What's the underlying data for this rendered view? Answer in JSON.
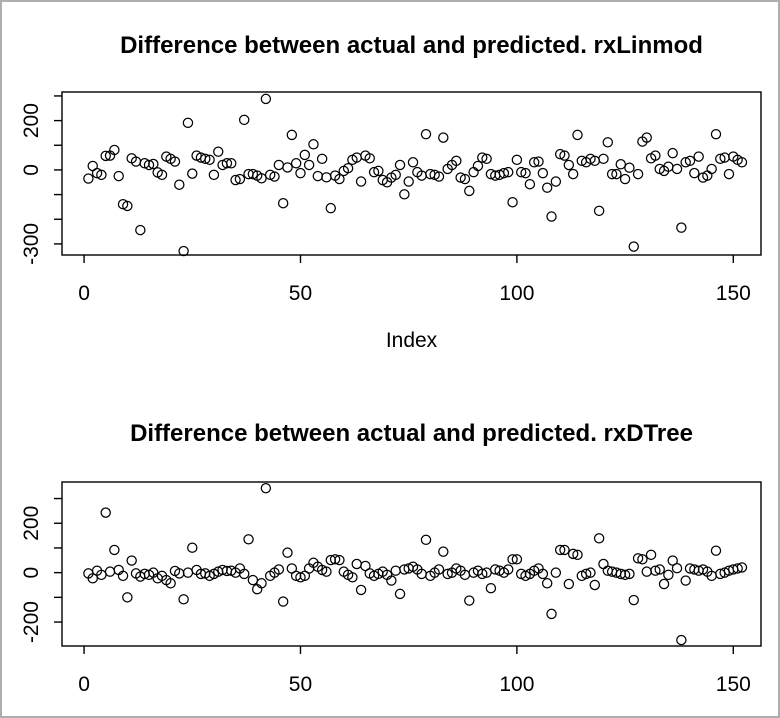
{
  "window": {
    "background": "#ffffff",
    "border_color": "#aeaeae",
    "plot_color": "#000000",
    "marker": "open-circle"
  },
  "chart_data": [
    {
      "type": "scatter",
      "title": "Difference between actual and predicted. rxLinmod",
      "xlabel": "Index",
      "ylabel": "",
      "legend": "none",
      "grid": false,
      "marker": "open-circle",
      "x_start": 1,
      "x_step": 1,
      "n_points": 152,
      "xlim": [
        -5.1,
        156.4
      ],
      "ylim": [
        -345,
        316
      ],
      "xticks": {
        "values": [
          0,
          50,
          100,
          150
        ],
        "labels": [
          "0",
          "50",
          "100",
          "150"
        ]
      },
      "yticks": {
        "values": [
          300,
          200,
          100,
          0,
          -100,
          -200,
          -300
        ],
        "labels": [
          "",
          "200",
          "",
          "0",
          "",
          "",
          "-300"
        ]
      },
      "values": [
        -35,
        16,
        -13,
        -20,
        57,
        58,
        81,
        -25,
        -139,
        -146,
        47,
        34,
        -244,
        27,
        20,
        24,
        -10,
        -20,
        54,
        45,
        34,
        -60,
        -329,
        191,
        -15,
        58,
        50,
        45,
        41,
        -20,
        74,
        20,
        27,
        27,
        -41,
        -37,
        203,
        -17,
        -17,
        -23,
        -34,
        288,
        -20,
        -27,
        20,
        -135,
        10,
        142,
        27,
        -13,
        61,
        20,
        104,
        -25,
        45,
        -30,
        -155,
        -23,
        -37,
        -4,
        7,
        41,
        50,
        -47,
        58,
        47,
        -9,
        -4,
        -41,
        -50,
        -31,
        -20,
        20,
        -99,
        -47,
        31,
        -9,
        -23,
        145,
        -17,
        -20,
        -27,
        131,
        4,
        20,
        37,
        -31,
        -37,
        -85,
        -9,
        16,
        50,
        45,
        -17,
        -23,
        -20,
        -13,
        -9,
        -131,
        41,
        -9,
        -13,
        -58,
        31,
        34,
        -13,
        -72,
        -189,
        -47,
        64,
        58,
        20,
        -17,
        142,
        37,
        31,
        45,
        37,
        -166,
        45,
        112,
        -17,
        -17,
        23,
        -37,
        9,
        -311,
        -17,
        115,
        131,
        47,
        58,
        4,
        -4,
        13,
        68,
        4,
        -234,
        31,
        37,
        -13,
        54,
        -31,
        -23,
        4,
        145,
        45,
        50,
        -17,
        54,
        41,
        31
      ]
    },
    {
      "type": "scatter",
      "title": "Difference between actual and predicted. rxDTree",
      "xlabel": "",
      "ylabel": "",
      "legend": "none",
      "grid": false,
      "marker": "open-circle",
      "x_start": 1,
      "x_step": 1,
      "n_points": 152,
      "xlim": [
        -5.1,
        156.4
      ],
      "ylim": [
        -297,
        367
      ],
      "xticks": {
        "values": [
          0,
          50,
          100,
          150
        ],
        "labels": [
          "0",
          "50",
          "100",
          "150"
        ]
      },
      "yticks": {
        "values": [
          300,
          200,
          100,
          0,
          -100,
          -200
        ],
        "labels": [
          "",
          "200",
          "",
          "0",
          "",
          "-200"
        ]
      },
      "values": [
        -3,
        -23,
        8,
        -9,
        243,
        4,
        92,
        11,
        -13,
        -100,
        49,
        -3,
        -16,
        -5,
        -9,
        0,
        -23,
        -13,
        -30,
        -43,
        7,
        -3,
        -108,
        0,
        101,
        11,
        -5,
        -3,
        -13,
        -5,
        4,
        11,
        7,
        8,
        0,
        17,
        -5,
        135,
        -30,
        -67,
        -43,
        342,
        -13,
        0,
        13,
        -117,
        81,
        17,
        -13,
        -19,
        -13,
        17,
        40,
        24,
        11,
        4,
        51,
        54,
        51,
        4,
        -9,
        -19,
        35,
        -70,
        27,
        -3,
        -13,
        -5,
        4,
        -9,
        -32,
        8,
        -86,
        13,
        17,
        24,
        13,
        -5,
        133,
        -13,
        0,
        13,
        85,
        -5,
        0,
        17,
        8,
        -9,
        -113,
        0,
        8,
        -5,
        0,
        -63,
        13,
        8,
        0,
        13,
        54,
        54,
        -5,
        -13,
        -5,
        8,
        17,
        -5,
        -43,
        -167,
        0,
        92,
        92,
        -46,
        76,
        72,
        -13,
        -5,
        0,
        -50,
        139,
        35,
        8,
        4,
        0,
        -5,
        -9,
        -5,
        -111,
        58,
        54,
        4,
        72,
        8,
        13,
        -46,
        -9,
        49,
        18,
        -273,
        -32,
        17,
        13,
        8,
        13,
        4,
        -13,
        89,
        -5,
        0,
        8,
        13,
        17,
        21
      ]
    }
  ]
}
